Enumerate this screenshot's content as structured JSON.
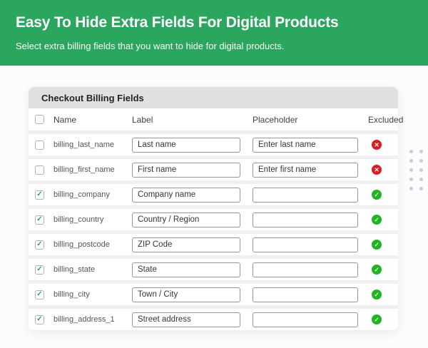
{
  "banner": {
    "title": "Easy To Hide Extra Fields For Digital Products",
    "subtitle": "Select extra billing fields that you want to hide for digital products.",
    "background_color": "#2aa65f"
  },
  "card": {
    "title": "Checkout Billing Fields",
    "columns": {
      "name": "Name",
      "label": "Label",
      "placeholder": "Placeholder",
      "excluded": "Excluded"
    },
    "rows": [
      {
        "checked": false,
        "name": "billing_last_name",
        "label": "Last name",
        "placeholder": "Enter last name",
        "excluded": false
      },
      {
        "checked": false,
        "name": "billing_first_name",
        "label": "First name",
        "placeholder": "Enter first name",
        "excluded": false
      },
      {
        "checked": true,
        "name": "billing_company",
        "label": "Company name",
        "placeholder": "",
        "excluded": true
      },
      {
        "checked": true,
        "name": "billing_country",
        "label": "Country / Region",
        "placeholder": "",
        "excluded": true
      },
      {
        "checked": true,
        "name": "billing_postcode",
        "label": "ZIP Code",
        "placeholder": "",
        "excluded": true
      },
      {
        "checked": true,
        "name": "billing_state",
        "label": "State",
        "placeholder": "",
        "excluded": true
      },
      {
        "checked": true,
        "name": "billing_city",
        "label": "Town / City",
        "placeholder": "",
        "excluded": true
      },
      {
        "checked": true,
        "name": "billing_address_1",
        "label": "Street address",
        "placeholder": "",
        "excluded": true
      }
    ]
  },
  "icons": {
    "check_glyph": "✓",
    "cross_glyph": "✕",
    "excluded_yes_color": "#1eb521",
    "excluded_no_color": "#dc1c24",
    "checkbox_check_color": "#28a745"
  }
}
